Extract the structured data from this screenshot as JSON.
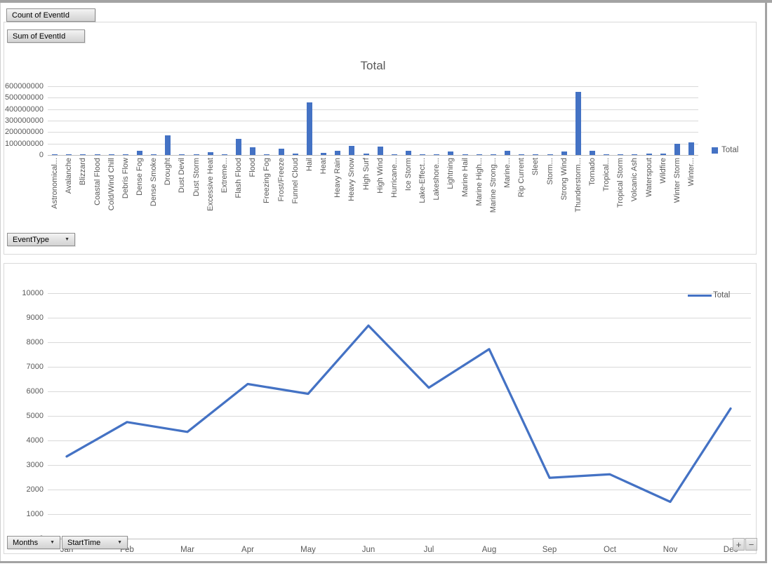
{
  "pivot_buttons": {
    "count_of_eventid": "Count of EventId",
    "sum_of_eventid": "Sum of EventId",
    "event_type": "EventType",
    "months": "Months",
    "start_time": "StartTime",
    "zoom_in": "+",
    "zoom_out": "−"
  },
  "colors": {
    "series_blue": "#4472C4",
    "axis_text": "#595959",
    "gridline": "#D9D9D9",
    "axis_line": "#BFBFBF",
    "chart_border": "#D9D9D9"
  },
  "chart_data": [
    {
      "type": "bar",
      "title": "Total",
      "legend": [
        "Total"
      ],
      "legend_position": "right",
      "ylim": [
        0,
        600000000
      ],
      "ytick_step": 100000000,
      "yticks": [
        "600000000",
        "500000000",
        "400000000",
        "300000000",
        "200000000",
        "100000000",
        "0"
      ],
      "grid": true,
      "xlabel": "",
      "ylabel": "",
      "categories": [
        "Astronomical...",
        "Avalanche",
        "Blizzard",
        "Coastal Flood",
        "Cold/Wind Chill",
        "Debris Flow",
        "Dense Fog",
        "Dense Smoke",
        "Drought",
        "Dust Devil",
        "Dust Storm",
        "Excessive Heat",
        "Extreme...",
        "Flash Flood",
        "Flood",
        "Freezing Fog",
        "Frost/Freeze",
        "Funnel Cloud",
        "Hail",
        "Heat",
        "Heavy Rain",
        "Heavy Snow",
        "High Surf",
        "High Wind",
        "Hurricane...",
        "Ice Storm",
        "Lake-Effect...",
        "Lakeshore...",
        "Lightning",
        "Marine Hail",
        "Marine High...",
        "Marine Strong...",
        "Marine...",
        "Rip Current",
        "Sleet",
        "Storm...",
        "Strong Wind",
        "Thunderstorm...",
        "Tornado",
        "Tropical...",
        "Tropical Storm",
        "Volcanic Ash",
        "Waterspout",
        "Wildfire",
        "Winter Storm",
        "Winter..."
      ],
      "values": [
        5000000,
        4000000,
        8000000,
        8000000,
        6000000,
        6000000,
        37000000,
        4000000,
        172000000,
        4000000,
        7000000,
        26000000,
        6000000,
        140000000,
        65000000,
        5000000,
        57000000,
        12000000,
        460000000,
        20000000,
        38000000,
        80000000,
        14000000,
        75000000,
        8000000,
        35000000,
        8000000,
        6000000,
        30000000,
        5000000,
        6000000,
        7000000,
        37000000,
        6000000,
        8000000,
        8000000,
        28000000,
        550000000,
        35000000,
        6000000,
        8000000,
        4000000,
        12000000,
        15000000,
        96000000,
        112000000
      ]
    },
    {
      "type": "line",
      "title": "",
      "legend": [
        "Total"
      ],
      "legend_position": "top-right",
      "ylim": [
        0,
        10000
      ],
      "ytick_step": 1000,
      "yticks": [
        "10000",
        "9000",
        "8000",
        "7000",
        "6000",
        "5000",
        "4000",
        "3000",
        "2000",
        "1000",
        "0"
      ],
      "grid": true,
      "xlabel": "",
      "ylabel": "",
      "categories": [
        "Jan",
        "Feb",
        "Mar",
        "Apr",
        "May",
        "Jun",
        "Jul",
        "Aug",
        "Sep",
        "Oct",
        "Nov",
        "Dec"
      ],
      "values": [
        3350,
        4750,
        4350,
        6300,
        5900,
        8680,
        6150,
        7720,
        2480,
        2620,
        1500,
        5300
      ]
    }
  ]
}
